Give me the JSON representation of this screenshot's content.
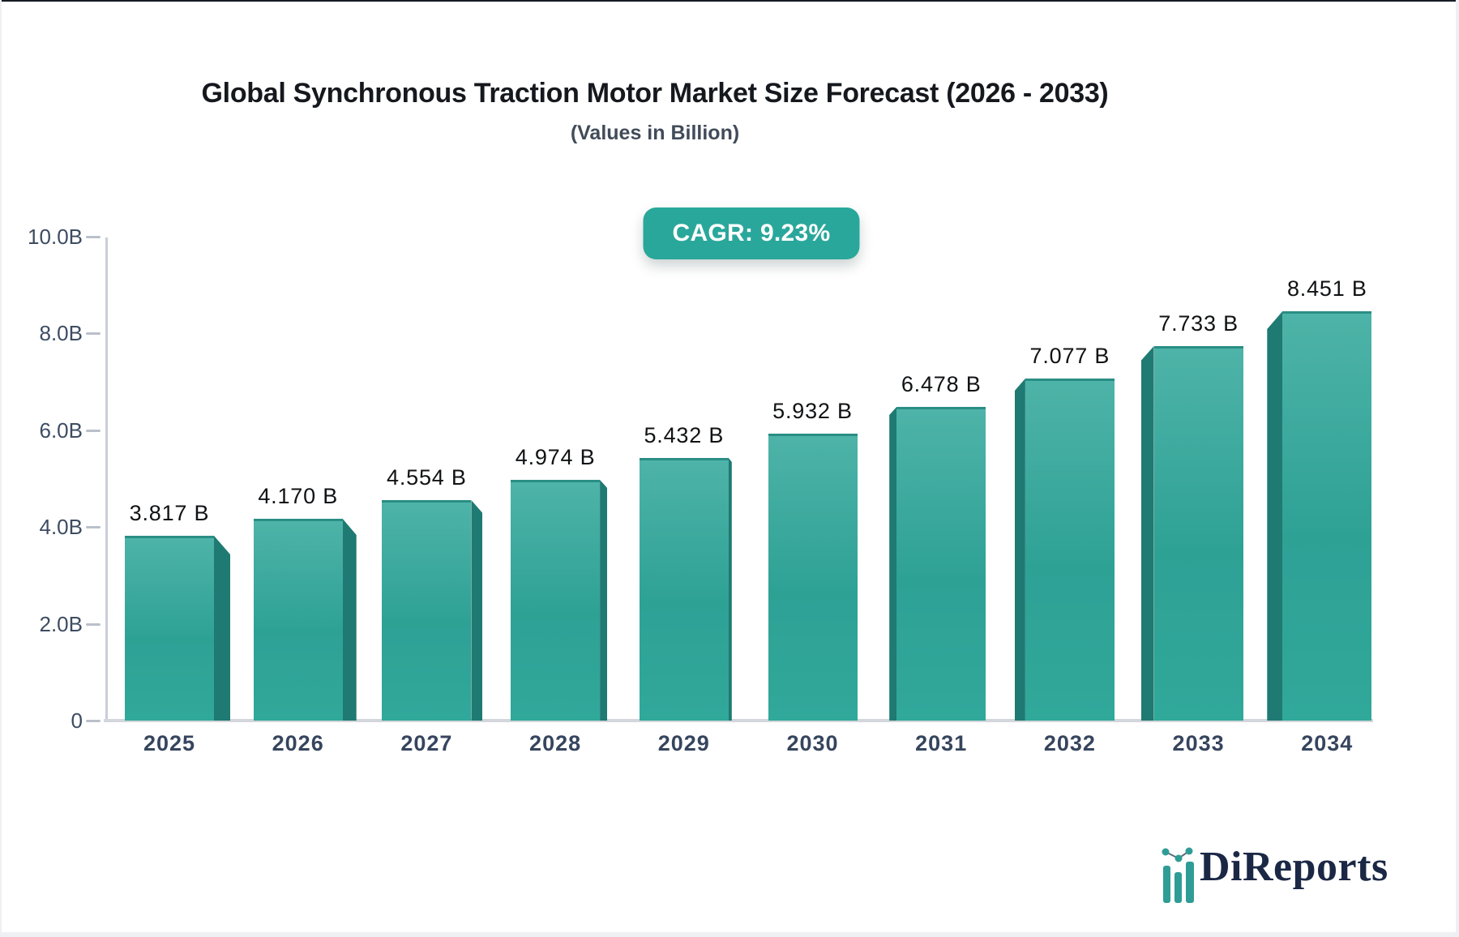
{
  "header": {
    "title": "Global Synchronous Traction Motor Market Size Forecast (2026 - 2033)",
    "subtitle": "(Values in Billion)"
  },
  "badge": {
    "label": "CAGR: 9.23%"
  },
  "brand": {
    "name": "DiReports",
    "icon": "bar-chart-logo-icon"
  },
  "chart_data": {
    "type": "bar",
    "title": "Global Synchronous Traction Motor Market Size Forecast (2026 - 2033)",
    "subtitle": "(Values in Billion)",
    "categories": [
      "2025",
      "2026",
      "2027",
      "2028",
      "2029",
      "2030",
      "2031",
      "2032",
      "2033",
      "2034"
    ],
    "values": [
      3.817,
      4.17,
      4.554,
      4.974,
      5.432,
      5.932,
      6.478,
      7.077,
      7.733,
      8.451
    ],
    "bar_labels": [
      "3.817 B",
      "4.170 B",
      "4.554 B",
      "4.974 B",
      "5.432 B",
      "5.932 B",
      "6.478 B",
      "7.077 B",
      "7.733 B",
      "8.451 B"
    ],
    "cagr": "9.23%",
    "ylim": [
      0,
      10
    ],
    "yticks": {
      "labels": [
        "10.0B",
        "8.0B",
        "6.0B",
        "4.0B",
        "2.0B",
        "0"
      ],
      "values": [
        10,
        8,
        6,
        4,
        2,
        0
      ]
    },
    "grid": false,
    "legend": false,
    "style": "3d-perspective-bars",
    "colors": {
      "bar_face_top": "#4eb3a8",
      "bar_face_bottom": "#2ea79a",
      "bar_side": "#1e7a72",
      "badge_bg": "#2aa79b",
      "badge_text": "#ffffff",
      "axis_text": "#3d4c62",
      "category_text": "#36455e",
      "value_text": "#101214",
      "axis_line": "#c9ced6",
      "logo_navy": "#1b2845",
      "logo_teal": "#2f9d95"
    }
  }
}
